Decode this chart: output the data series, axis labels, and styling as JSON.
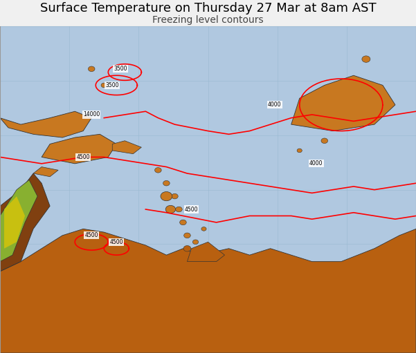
{
  "title": "Surface Temperature on Thursday 27 Mar at 8am AST",
  "subtitle": "Freezing level contours",
  "title_fontsize": 13,
  "subtitle_fontsize": 10,
  "bg_color": "#c8d8e8",
  "map_bg": "#b8cfe0",
  "border_color": "#999999",
  "contour_color": "#ff0000",
  "contour_labels": [
    "3500",
    "3500",
    "4000",
    "4000",
    "4000",
    "4500",
    "4500",
    "4500"
  ],
  "land_color_base": "#c87820",
  "land_color_mountain": "#8bb840",
  "header_bg": "#f0f0f0",
  "header_border": "#b0b0b0"
}
